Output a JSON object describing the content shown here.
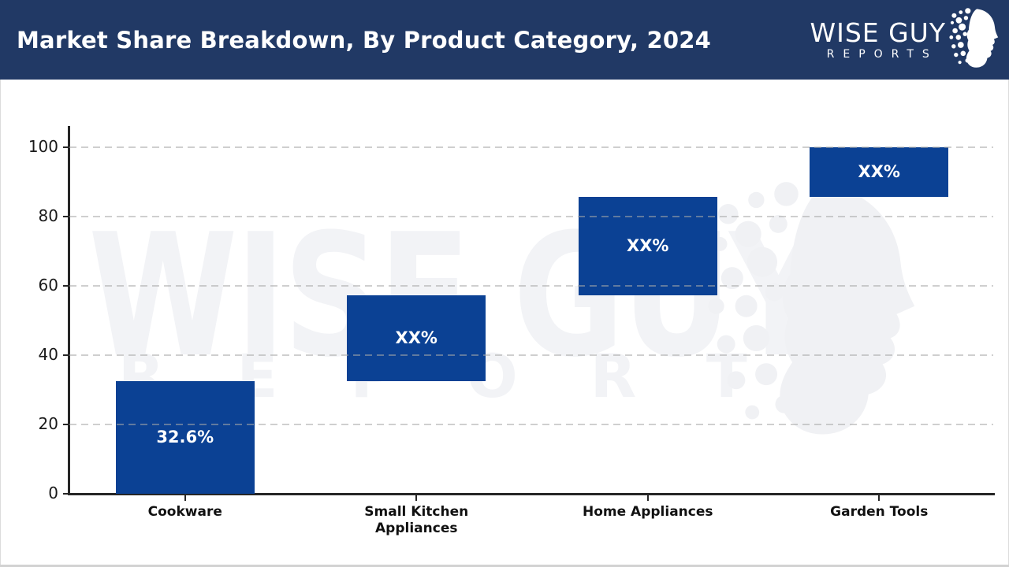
{
  "header": {
    "title": "Market Share Breakdown, By Product Category, 2024",
    "logo": {
      "line1": "WISE GUY",
      "line2": "REPORTS"
    }
  },
  "watermark": {
    "line1": "WISE GUY",
    "line2": "REPORTS"
  },
  "colors": {
    "header_bg": "#213965",
    "bar": "#0b4194",
    "bar_label": "#ffffff",
    "axis": "#262626",
    "gridline": "#d9d9d9",
    "watermark": "#f2f3f6"
  },
  "chart_data": {
    "type": "bar",
    "variant": "waterfall",
    "title": "Market Share Breakdown, By Product Category, 2024",
    "categories": [
      "Cookware",
      "Small Kitchen Appliances",
      "Home Appliances",
      "Garden Tools"
    ],
    "segments": [
      {
        "category": "Cookware",
        "start": 0,
        "end": 32.6,
        "label": "32.6%"
      },
      {
        "category": "Small Kitchen Appliances",
        "start": 32.6,
        "end": 57.3,
        "label": "XX%"
      },
      {
        "category": "Home Appliances",
        "start": 57.3,
        "end": 85.7,
        "label": "XX%"
      },
      {
        "category": "Garden Tools",
        "start": 85.7,
        "end": 100,
        "label": "XX%"
      }
    ],
    "yticks": [
      0,
      20,
      40,
      60,
      80,
      100
    ],
    "ylim": [
      0,
      105
    ],
    "xlabel": "",
    "ylabel": "",
    "grid": "horizontal-dashed",
    "legend": "none"
  }
}
